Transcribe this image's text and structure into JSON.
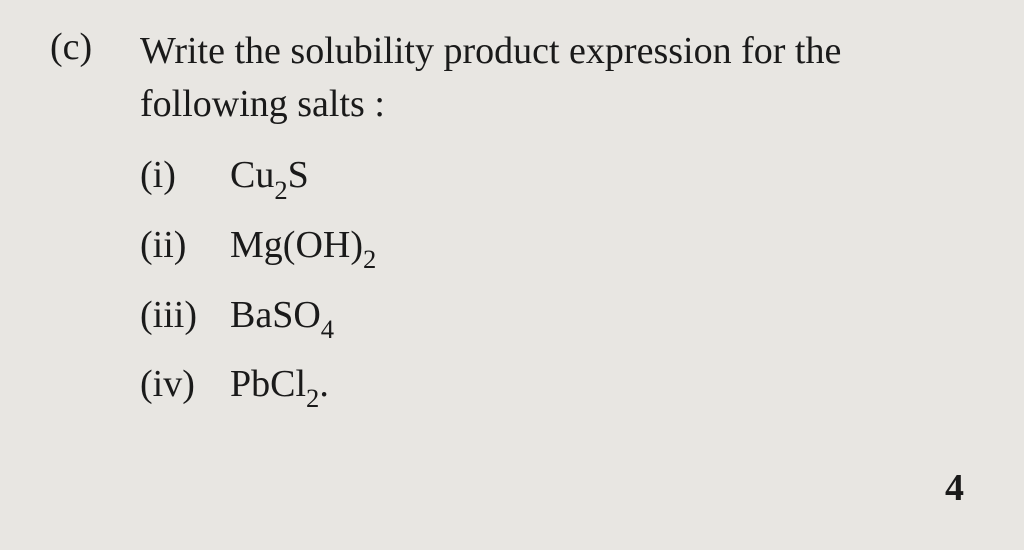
{
  "question": {
    "label": "(c)",
    "text": "Write the solubility product expression for the following salts :",
    "items": [
      {
        "label": "(i)",
        "formula_html": "Cu<sub>2</sub>S"
      },
      {
        "label": "(ii)",
        "formula_html": "Mg(OH)<sub>2</sub>"
      },
      {
        "label": "(iii)",
        "formula_html": "BaSO<sub>4</sub>"
      },
      {
        "label": "(iv)",
        "formula_html": "PbCl<sub>2</sub>."
      }
    ],
    "marks": "4"
  },
  "style": {
    "background_color": "#e8e6e2",
    "text_color": "#1a1a1a",
    "font_family": "Times New Roman",
    "font_size_pt": 28
  }
}
